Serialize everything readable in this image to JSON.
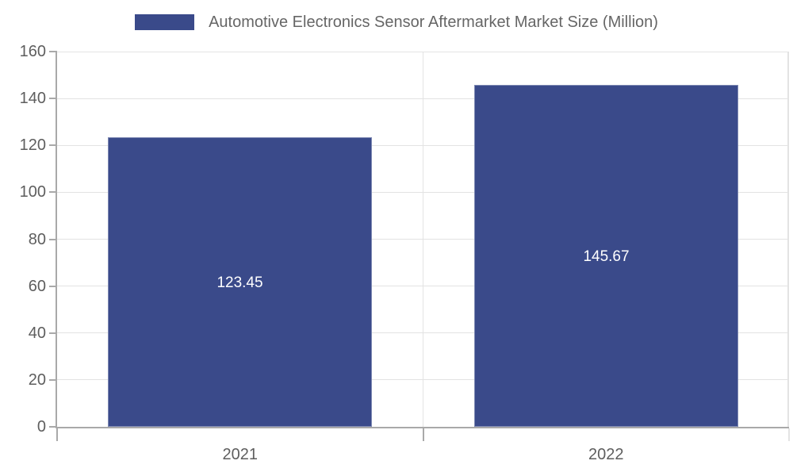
{
  "legend": {
    "label": "Automotive Electronics Sensor Aftermarket Market Size (Million)"
  },
  "chart_data": {
    "type": "bar",
    "title": "",
    "xlabel": "",
    "ylabel": "",
    "categories": [
      "2021",
      "2022"
    ],
    "series": [
      {
        "name": "Automotive Electronics Sensor Aftermarket Market Size (Million)",
        "values": [
          123.45,
          145.67
        ],
        "value_labels": [
          "123.45",
          "145.67"
        ]
      }
    ],
    "ylim": [
      0,
      160
    ],
    "ytick_step": 20,
    "ytick_labels": [
      "0",
      "20",
      "40",
      "60",
      "80",
      "100",
      "120",
      "140",
      "160"
    ],
    "grid": true,
    "legend_position": "top"
  },
  "colors": {
    "bar_fill": "#3a4a8a",
    "value_label_text": "#ffffff",
    "axis_line": "#a9a9a9",
    "grid_line": "#e3e3e3",
    "right_spine": "#e3e3e3",
    "tick_label_text": "#5e5e5e",
    "legend_text": "#666666",
    "background": "#ffffff"
  }
}
